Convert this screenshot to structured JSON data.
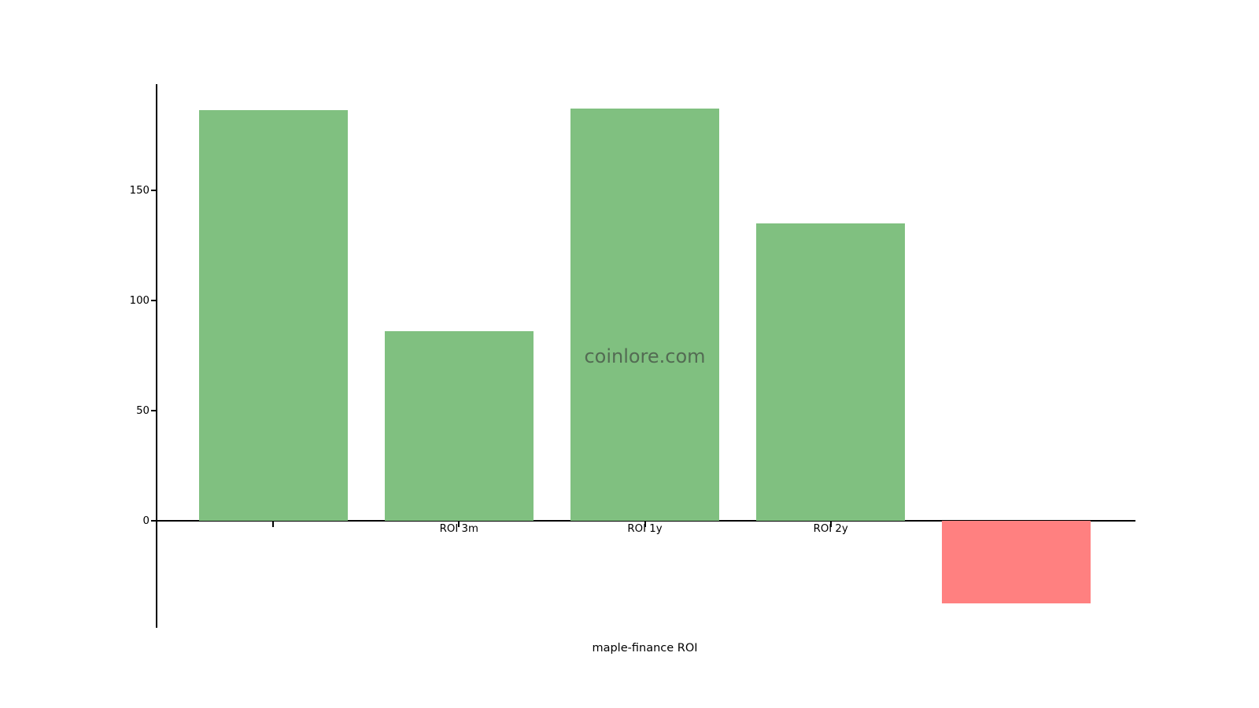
{
  "chart_data": {
    "type": "bar",
    "title": "maple-finance ROI",
    "watermark": "coinlore.com",
    "categories": [
      "",
      "ROI 3m",
      "ROI 1y",
      "ROI 2y",
      ""
    ],
    "values": [
      186.6,
      86.0,
      187.2,
      135.3,
      -37.4
    ],
    "bar_colors": [
      "#80c080",
      "#80c080",
      "#80c080",
      "#80c080",
      "#ff8080"
    ],
    "positive_color": "#80c080",
    "negative_color": "#ff8080",
    "yticks": [
      0,
      50,
      100,
      150
    ],
    "ylim": [
      -48.6,
      198.4
    ],
    "xlim": [
      -0.64,
      4.64
    ],
    "bar_width": 0.8,
    "xticks_visible": [
      true,
      true,
      true,
      true,
      false
    ],
    "grid": false,
    "legend": null,
    "axis_color": "#000000",
    "tick_label_color": "#000000",
    "watermark_color": "rgba(55,55,55,0.62)",
    "background_color": "#ffffff"
  }
}
